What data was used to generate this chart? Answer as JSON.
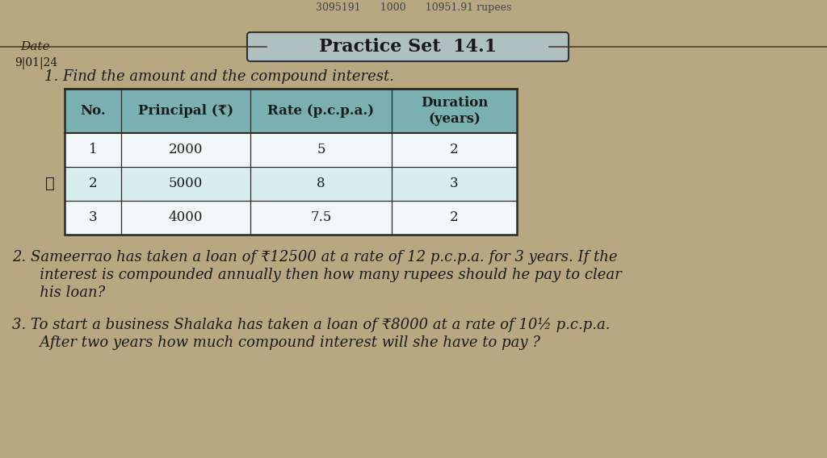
{
  "title": "Practice Set  14.1",
  "date_label": "Date",
  "date_value": "9|01|24",
  "checkmark": "✓",
  "table_headers": [
    "No.",
    "Principal (₹)",
    "Rate (p.c.p.a.)",
    "Duration\n(years)"
  ],
  "table_data": [
    [
      "1",
      "2000",
      "5",
      "2"
    ],
    [
      "2",
      "5000",
      "8",
      "3"
    ],
    [
      "3",
      "4000",
      "7.5",
      "2"
    ]
  ],
  "header_bg": "#7ab0b0",
  "row_bg_1": "#f2f8f8",
  "row_bg_2": "#d8eded",
  "page_bg": "#b8a882",
  "title_box_bg": "#b0bfbf",
  "text_color": "#1a1a1a",
  "border_color": "#2a2a2a",
  "top_remnant": "3095191      1000      10951.91 rupees",
  "q1_text": "1. Find the amount and the compound interest.",
  "q2_line1": "2. Sameerrao has taken a loan of ₹12500 at a rate of 12 p.c.p.a. for 3 years. If the",
  "q2_line2": "   interest is compounded annually then how many rupees should he pay to clear",
  "q2_line3": "   his loan?",
  "q3_line1": "3. To start a business Shalaka has taken a loan of ₹8000 at a rate of 10½ p.c.p.a.",
  "q3_line2": "   After two years how much compound interest will she have to pay ?",
  "font_size_title": 16,
  "font_size_text": 13,
  "font_size_table": 12,
  "font_size_small": 9
}
